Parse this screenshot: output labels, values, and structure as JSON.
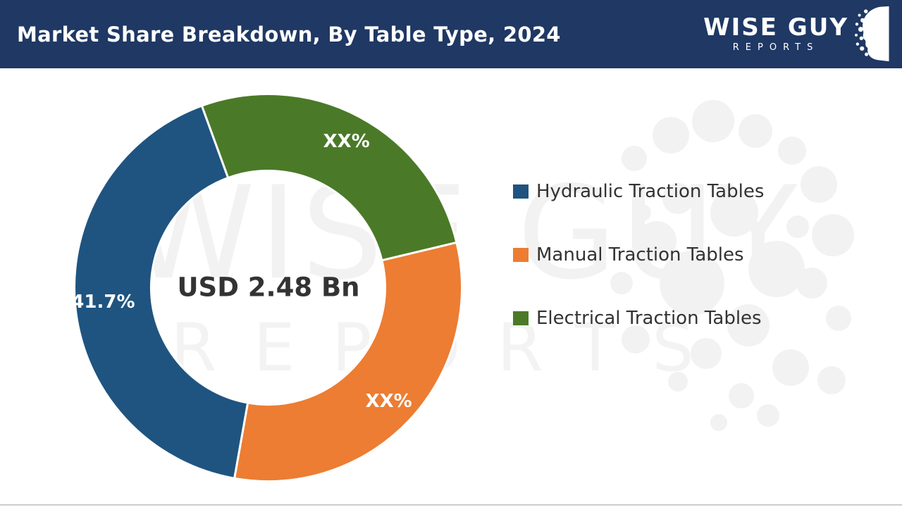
{
  "header": {
    "title": "Market Share Breakdown, By Table Type, 2024",
    "logo": {
      "line1": "WISE GUY",
      "line2": "REPORTS"
    }
  },
  "colors": {
    "header_bg": "#1f3864",
    "hydraulic_blue": "#1f5480",
    "manual_orange": "#ec7d33",
    "electrical_green": "#4a7a28",
    "center_text": "#333333",
    "watermark_gray": "#f2f2f2"
  },
  "chart_data": {
    "type": "pie",
    "subtype": "donut",
    "title": "Market Share Breakdown, By Table Type, 2024",
    "center_label": "USD 2.48 Bn",
    "donut_hole_ratio": 0.6,
    "legend_position": "right",
    "segments": [
      {
        "name": "Hydraulic Traction Tables",
        "label": "41.7%",
        "value_pct": 41.7,
        "color": "#1f5480",
        "start_angle_deg": 110,
        "end_angle_deg": 260
      },
      {
        "name": "Manual Traction Tables",
        "label": "XX%",
        "value_pct": 31.5,
        "color": "#ec7d33",
        "start_angle_deg": 260,
        "end_angle_deg": 373.5
      },
      {
        "name": "Electrical Traction Tables",
        "label": "XX%",
        "value_pct": 26.8,
        "color": "#4a7a28",
        "start_angle_deg": 13.5,
        "end_angle_deg": 110
      }
    ]
  },
  "watermark": {
    "line1": "WISE GUY",
    "line2": "REPORTS"
  }
}
